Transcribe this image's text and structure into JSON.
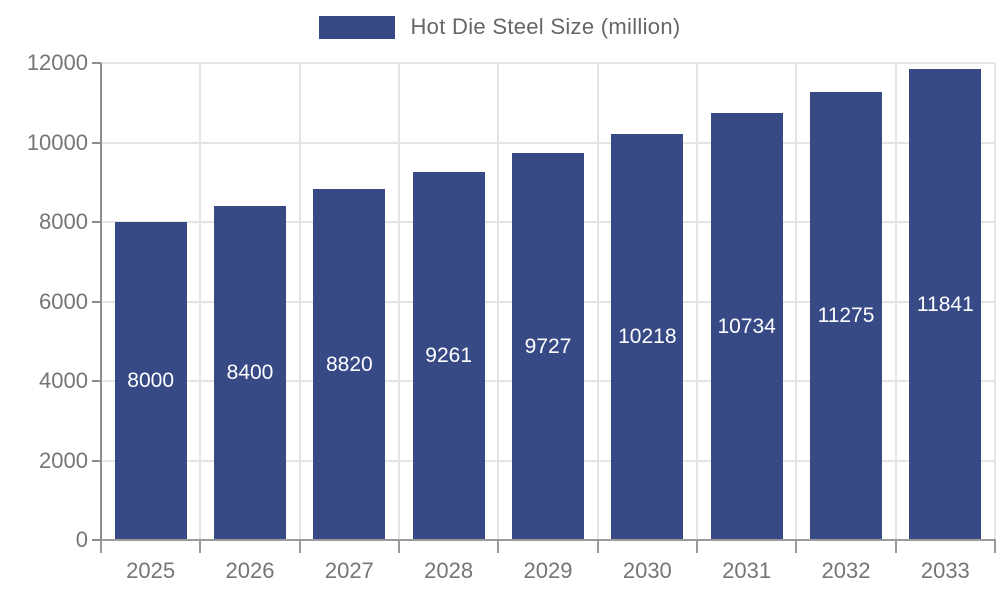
{
  "legend": {
    "label": "Hot Die Steel Size (million)",
    "swatch_color": "#374a86"
  },
  "chart_data": {
    "type": "bar",
    "title": "Hot Die Steel Size (million)",
    "series_name": "Hot Die Steel Size (million)",
    "categories": [
      "2025",
      "2026",
      "2027",
      "2028",
      "2029",
      "2030",
      "2031",
      "2032",
      "2033"
    ],
    "values": [
      8000,
      8400,
      8820,
      9261,
      9727,
      10218,
      10734,
      11275,
      11841
    ],
    "value_labels": [
      "8000",
      "8400",
      "8820",
      "9261",
      "9727",
      "10218",
      "10734",
      "11275",
      "11841"
    ],
    "xlabel": "",
    "ylabel": "",
    "ylim": [
      0,
      12000
    ],
    "yticks": [
      0,
      2000,
      4000,
      6000,
      8000,
      10000,
      12000
    ],
    "ytick_labels": [
      "0",
      "2000",
      "4000",
      "6000",
      "8000",
      "10000",
      "12000"
    ],
    "grid": true,
    "grid_horizontal": true,
    "grid_vertical": true,
    "legend_position": "top-center",
    "bar_color": "#374a86",
    "value_label_color": "#ffffff",
    "axis_text_color": "#757575",
    "legend_text_color": "#666666",
    "gridline_color": "#e4e4e4",
    "axis_line_color": "#8c8c8c",
    "background_color": "#ffffff"
  }
}
